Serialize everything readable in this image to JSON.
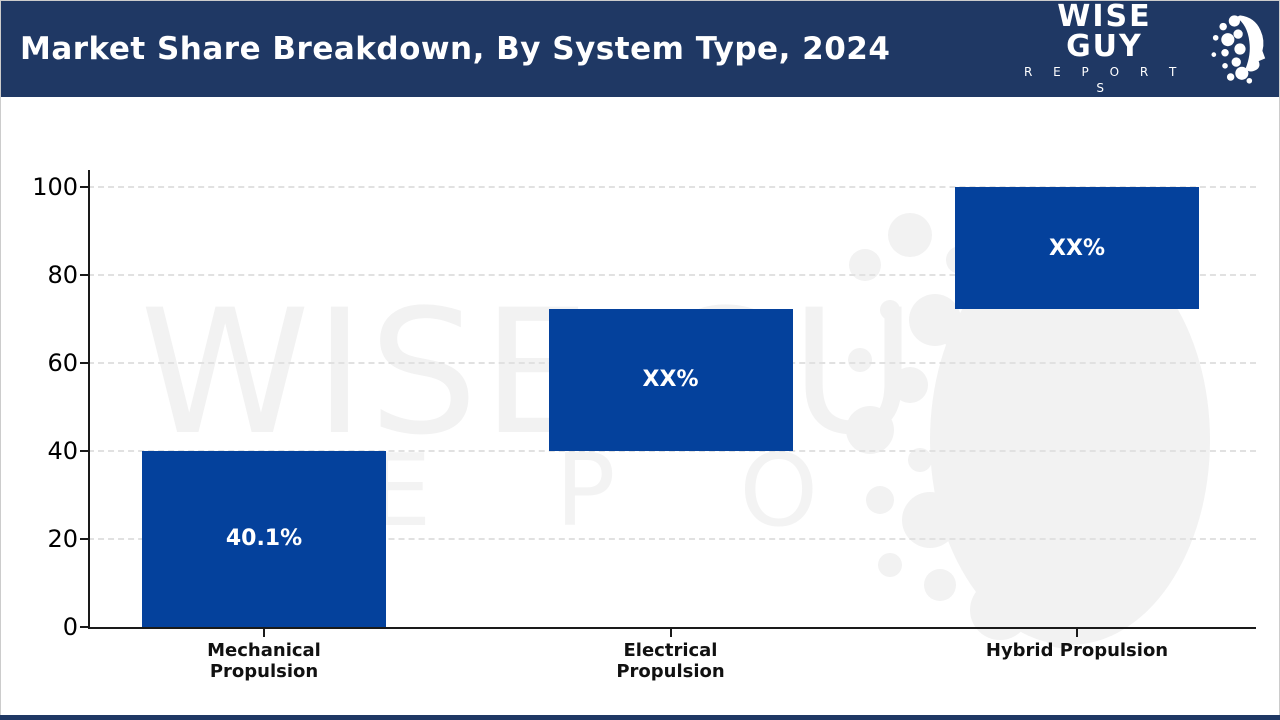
{
  "header": {
    "title": "Market Share Breakdown, By System Type, 2024",
    "bg_color": "#1f3864",
    "logo": {
      "line1": "WISE GUY",
      "line2": "R E P O R T S"
    }
  },
  "watermark": {
    "big_text": "WISE GUY",
    "small_text": "R E P O R T S"
  },
  "chart_data": {
    "type": "bar",
    "subtype": "waterfall-stacked (each bar starts where the previous one ended)",
    "title": "Market Share Breakdown, By System Type, 2024",
    "categories": [
      "Mechanical Propulsion",
      "Electrical Propulsion",
      "Hybrid Propulsion"
    ],
    "category_label_lines": [
      [
        "Mechanical",
        "Propulsion"
      ],
      [
        "Electrical",
        "Propulsion"
      ],
      [
        "Hybrid Propulsion"
      ]
    ],
    "segments": [
      [
        0,
        40.1
      ],
      [
        40.1,
        72.2
      ],
      [
        72.2,
        100
      ]
    ],
    "values": [
      40.1,
      32.1,
      27.8
    ],
    "bar_labels": [
      "40.1%",
      "XX%",
      "XX%"
    ],
    "xlabel": "",
    "ylabel": "",
    "ylim": [
      0,
      100
    ],
    "yticks": [
      0,
      20,
      40,
      60,
      80,
      100
    ],
    "grid": "horizontal dashed",
    "legend": "none",
    "bar_color": "#04419c",
    "label_color": "#ffffff"
  }
}
